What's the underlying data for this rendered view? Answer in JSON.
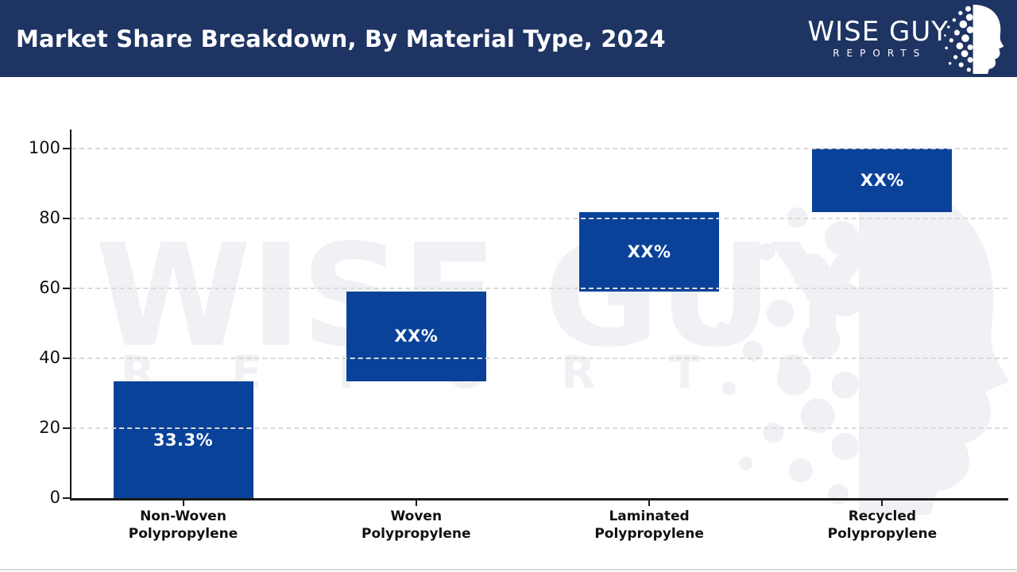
{
  "header": {
    "title": "Market Share Breakdown, By Material Type, 2024",
    "bg_color": "#1e3462",
    "logo": {
      "line1": "WISE GUY",
      "line2": "REPORTS"
    }
  },
  "watermark": {
    "line1": "WISE GUY",
    "line2": "REPORTS"
  },
  "chart_data": {
    "type": "waterfall",
    "title": "Market Share Breakdown, By Material Type, 2024",
    "categories": [
      "Non-Woven\nPolypropylene",
      "Woven\nPolypropylene",
      "Laminated\nPolypropylene",
      "Recycled\nPolypropylene"
    ],
    "segments": [
      {
        "category": "Non-Woven Polypropylene",
        "start": 0,
        "end": 33.3,
        "value": 33.3,
        "label": "33.3%"
      },
      {
        "category": "Woven Polypropylene",
        "start": 33.3,
        "end": 59.2,
        "value": 25.9,
        "label": "XX%"
      },
      {
        "category": "Laminated Polypropylene",
        "start": 59.2,
        "end": 81.8,
        "value": 22.6,
        "label": "XX%"
      },
      {
        "category": "Recycled Polypropylene",
        "start": 81.8,
        "end": 100,
        "value": 18.2,
        "label": "XX%"
      }
    ],
    "ylim": [
      0,
      100
    ],
    "yticks": [
      0,
      20,
      40,
      60,
      80,
      100
    ],
    "xlabel": "",
    "ylabel": "",
    "grid": "horizontal-dashed",
    "legend": "none",
    "bar_color": "#0a4299",
    "bar_label_color": "#ffffff"
  }
}
